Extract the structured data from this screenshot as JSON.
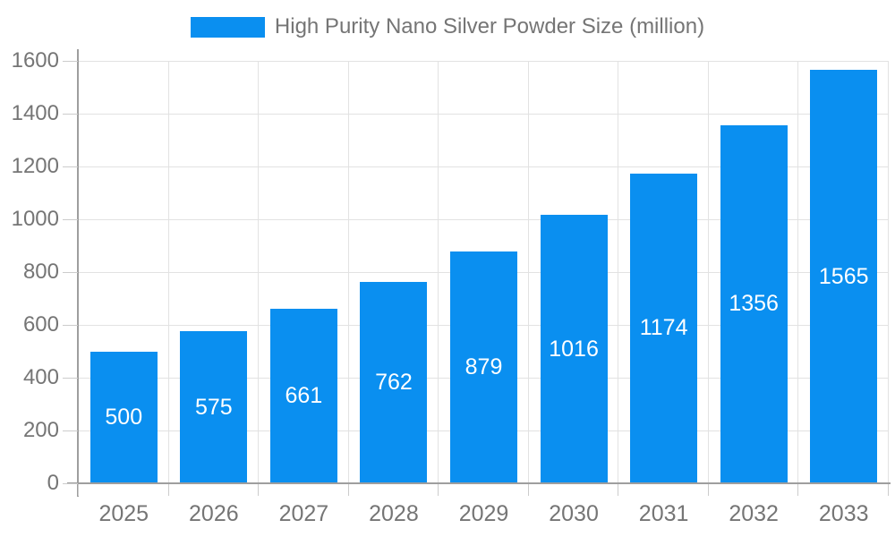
{
  "chart_data": {
    "type": "bar",
    "title": "High Purity Nano Silver Powder Size (million)",
    "legend_position": "top",
    "categories": [
      "2025",
      "2026",
      "2027",
      "2028",
      "2029",
      "2030",
      "2031",
      "2032",
      "2033"
    ],
    "values": [
      500,
      575,
      661,
      762,
      879,
      1016,
      1174,
      1356,
      1565
    ],
    "series_name": "High Purity Nano Silver Powder Size (million)",
    "xlabel": "",
    "ylabel": "",
    "ylim": [
      0,
      1600
    ],
    "yticks": [
      0,
      200,
      400,
      600,
      800,
      1000,
      1200,
      1400,
      1600
    ],
    "grid": true,
    "bar_value_labels_inside": true,
    "colors": {
      "bar": "#0a8ff0",
      "bar_label": "#ffffff",
      "axis_text": "#757575",
      "axis_line": "#9e9e9e",
      "gridline": "#e2e2e2",
      "tick": "#cccccc",
      "background": "#ffffff"
    }
  }
}
